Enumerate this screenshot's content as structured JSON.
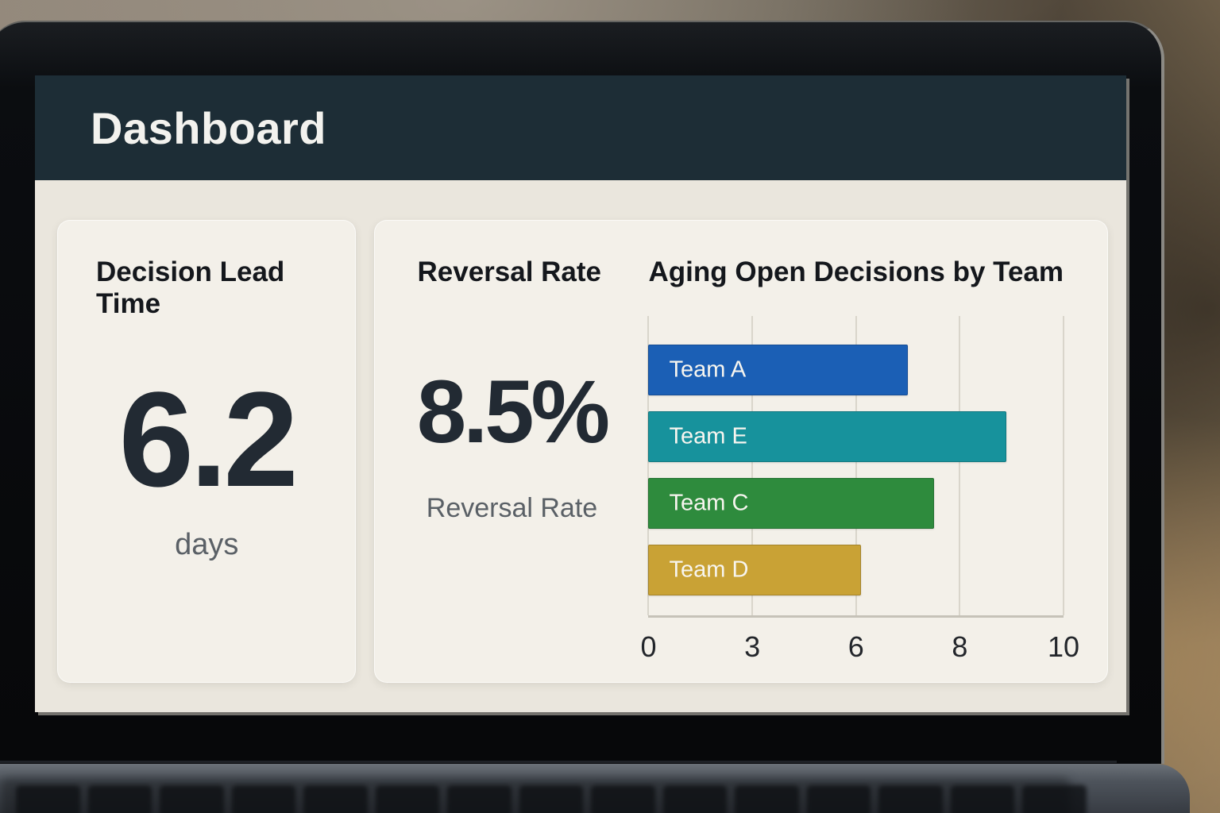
{
  "screen": {
    "header": {
      "title": "Dashboard"
    }
  },
  "cards": {
    "lead_time": {
      "title": "Decision Lead Time",
      "value": "6.2",
      "unit": "days"
    },
    "reversal_rate": {
      "title": "Reversal Rate",
      "value": "8.5%",
      "subtitle": "Reversal Rate"
    }
  },
  "chart_data": {
    "type": "bar",
    "orientation": "horizontal",
    "title": "Aging Open Decisions by Team",
    "categories": [
      "Team A",
      "Team E",
      "Team C",
      "Team D"
    ],
    "values": [
      7.0,
      8.9,
      7.5,
      6.1
    ],
    "xlim": [
      0,
      10
    ],
    "x_tick_labels": [
      0,
      3,
      6,
      8,
      10
    ],
    "bar_colors": [
      "#1b5fb5",
      "#17929c",
      "#2e8b3d",
      "#c9a235"
    ],
    "grid": true,
    "legend": false,
    "category_labels_position": "inside-bar-left"
  },
  "colors": {
    "header_bg": "#1d2d36",
    "screen_bg": "#eae6dd",
    "card_bg": "#f3f0e9",
    "title_text": "#14171c",
    "kpi_text": "#222a33",
    "muted_text": "#5a6066",
    "grid_line": "#d9d5cb",
    "axis_line": "#c6c2b8",
    "tick_text": "#23262b",
    "bar_label_text": "#f7f5ef"
  }
}
